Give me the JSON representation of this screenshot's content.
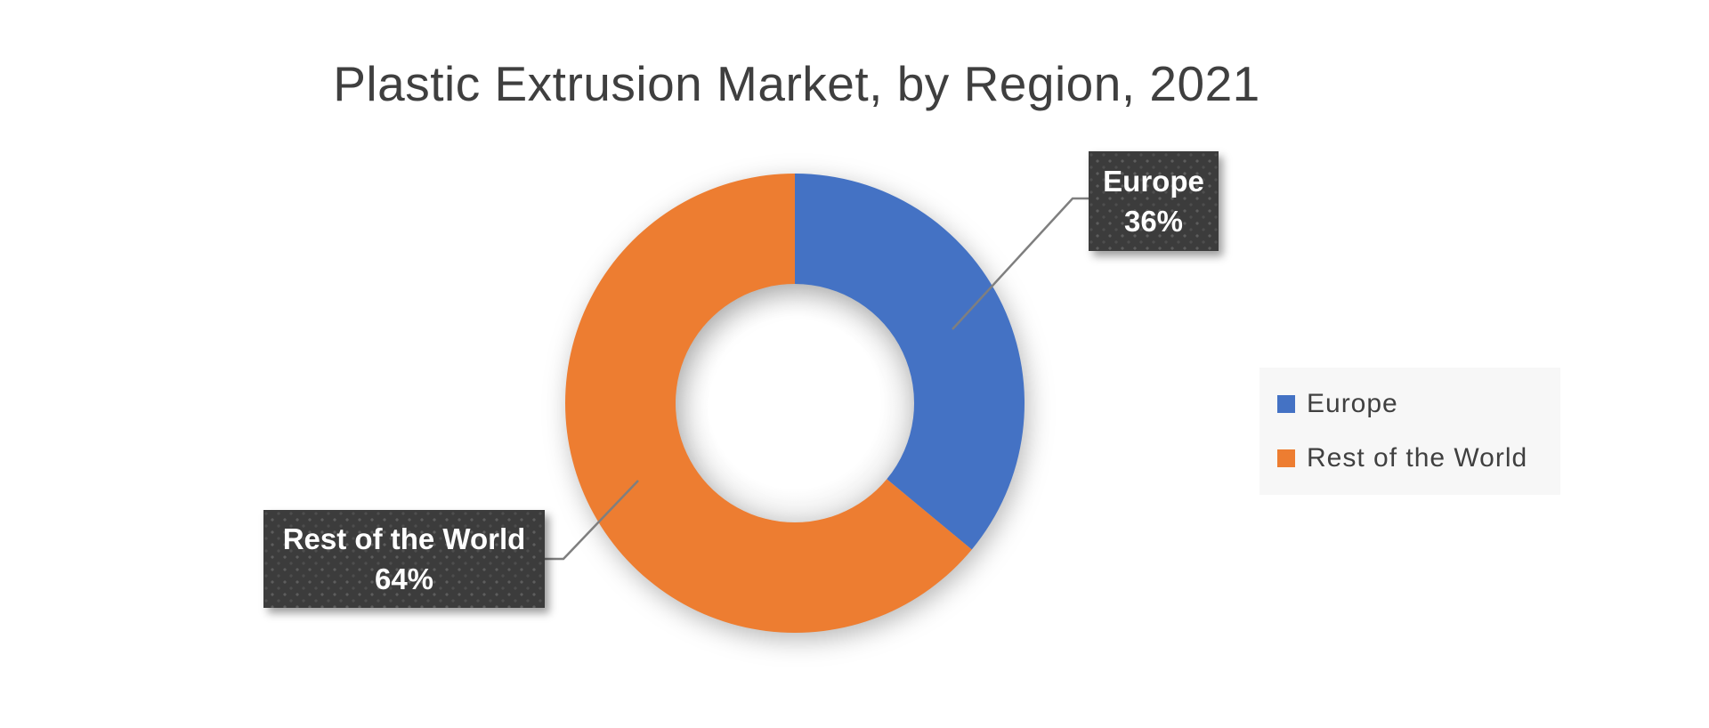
{
  "chart_data": {
    "type": "pie",
    "subtype": "donut",
    "title": "Plastic Extrusion Market, by Region, 2021",
    "categories": [
      "Europe",
      "Rest of the World"
    ],
    "values": [
      36,
      64
    ],
    "unit": "%",
    "colors": [
      "#4472C4",
      "#ED7D31"
    ],
    "start_angle_deg": 0,
    "direction": "clockwise",
    "hole_ratio": 0.52,
    "legend_position": "right",
    "callouts": [
      {
        "name": "Europe",
        "percent": "36%"
      },
      {
        "name": "Rest of the World",
        "percent": "64%"
      }
    ],
    "legend": {
      "entries": [
        "Europe",
        "Rest of the World"
      ]
    }
  },
  "style_colors": {
    "title_text": "#3f3f3f",
    "callout_background": "#3c3c3c",
    "callout_text": "#ffffff",
    "leader_line": "#7f7f7f",
    "legend_background": "#f7f7f7",
    "legend_text": "#404040"
  }
}
